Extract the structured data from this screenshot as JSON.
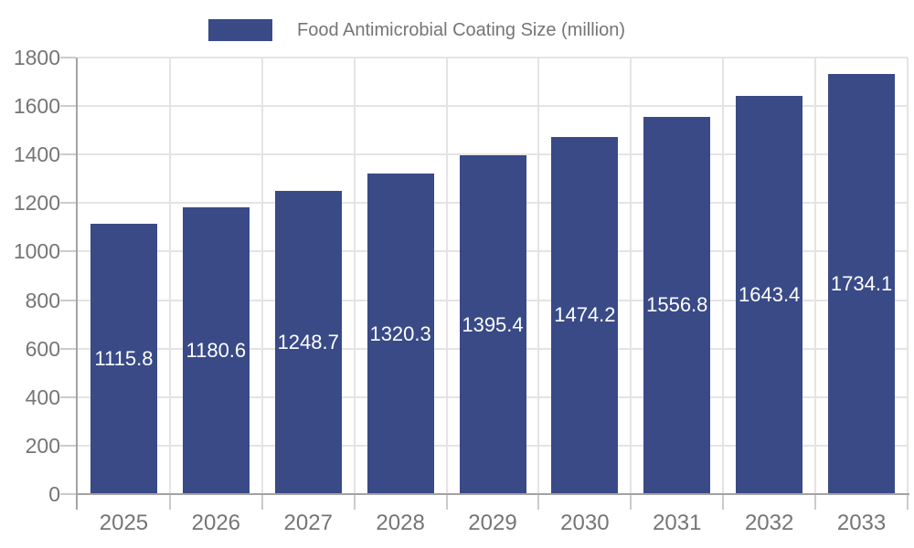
{
  "chart_data": {
    "type": "bar",
    "title": "Food Antimicrobial Coating Size (million)",
    "series_name": "Food Antimicrobial Coating Size (million)",
    "categories": [
      "2025",
      "2026",
      "2027",
      "2028",
      "2029",
      "2030",
      "2031",
      "2032",
      "2033"
    ],
    "values": [
      1115.8,
      1180.6,
      1248.7,
      1320.3,
      1395.4,
      1474.2,
      1556.8,
      1643.4,
      1734.1
    ],
    "value_labels": [
      "1115.8",
      "1180.6",
      "1248.7",
      "1320.3",
      "1395.4",
      "1474.2",
      "1556.8",
      "1643.4",
      "1734.1"
    ],
    "xlabel": "",
    "ylabel": "",
    "ylim": [
      0,
      1800
    ],
    "y_ticks": [
      0,
      200,
      400,
      600,
      800,
      1000,
      1200,
      1400,
      1600,
      1800
    ],
    "grid": true,
    "legend_position": "top",
    "value_label_position": "inside-center",
    "colors": {
      "bar": "#394a87",
      "value_text": "#ffffff",
      "axis_text": "#757575",
      "gridline": "#e4e4e4",
      "axis_line": "#a3a3a3",
      "tick": "#cbcbcb",
      "background": "#ffffff"
    }
  }
}
